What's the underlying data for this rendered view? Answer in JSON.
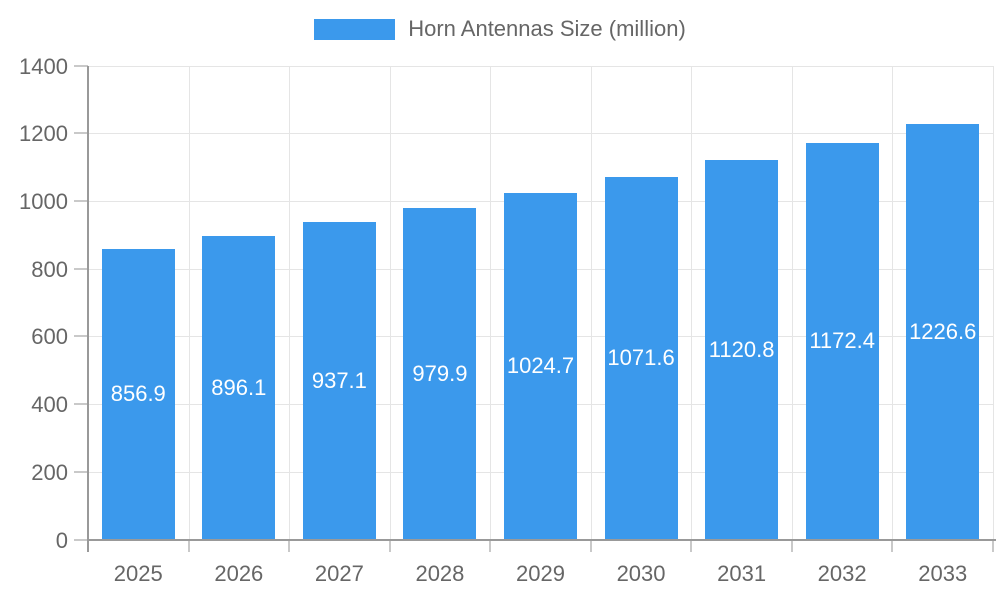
{
  "legend": {
    "items": [
      {
        "label": "Horn Antennas Size (million)",
        "color": "#3B99EC"
      }
    ]
  },
  "chart_data": {
    "type": "bar",
    "title": "Horn Antennas Size (million)",
    "categories": [
      "2025",
      "2026",
      "2027",
      "2028",
      "2029",
      "2030",
      "2031",
      "2032",
      "2033"
    ],
    "series": [
      {
        "name": "Horn Antennas Size (million)",
        "color": "#3B99EC",
        "values": [
          856.9,
          896.1,
          937.1,
          979.9,
          1024.7,
          1071.6,
          1120.8,
          1172.4,
          1226.6
        ]
      }
    ],
    "value_labels": [
      "856.9",
      "896.1",
      "937.1",
      "979.9",
      "1024.7",
      "1071.6",
      "1120.8",
      "1172.4",
      "1226.6"
    ],
    "xlabel": "",
    "ylabel": "",
    "ylim": [
      0,
      1400
    ],
    "yticks": [
      0,
      200,
      400,
      600,
      800,
      1000,
      1200,
      1400
    ],
    "grid": true,
    "legend_position": "top",
    "colors": {
      "bar": "#3B99EC",
      "bar_label_text": "#FFFFFF",
      "grid_line": "#E5E5E5",
      "axis_line": "#999999",
      "tick_mark": "#C9C9C9",
      "axis_text": "#666666",
      "legend_text": "#666666",
      "background": "#FFFFFF"
    }
  }
}
